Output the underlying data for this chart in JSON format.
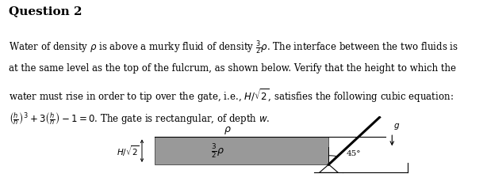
{
  "title": "Question 2",
  "title_fontsize": 11,
  "title_fontweight": "bold",
  "body_fontsize": 8.5,
  "bg_color": "#ffffff",
  "body_lines": [
    "Water of density $\\rho$ is above a murky fluid of density $\\frac{3}{2}\\rho$. The interface between the two fluids is",
    "at the same level as the top of the fulcrum, as shown below. Verify that the height to which the",
    "water must rise in order to tip over the gate, i.e., $H/\\sqrt{2}$, satisfies the following cubic equation:",
    "$\\left(\\frac{h}{n}\\right)^3 +3\\left(\\frac{h}{n}\\right) - 1 = 0$. The gate is rectangular, of depth $w$."
  ],
  "diag_rect_color": "#999999",
  "diag_rect_edge_color": "#555555",
  "rho_label": "$\\rho$",
  "murky_label": "$\\frac{3}{2}\\rho$",
  "H_label": "$H/\\sqrt{2}$",
  "g_label": "$g$",
  "angle_label": "45°"
}
